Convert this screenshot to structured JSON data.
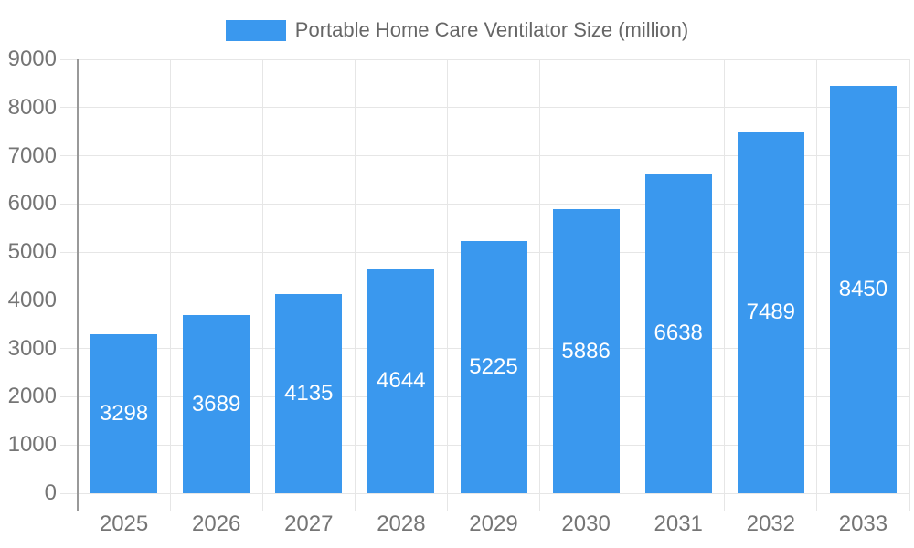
{
  "chart_data": {
    "type": "bar",
    "title": "Portable Home Care Ventilator Size (million)",
    "legend": [
      {
        "label": "Portable Home Care Ventilator Size (million)",
        "color": "#3a98ee"
      }
    ],
    "categories": [
      "2025",
      "2026",
      "2027",
      "2028",
      "2029",
      "2030",
      "2031",
      "2032",
      "2033"
    ],
    "series": [
      {
        "name": "Portable Home Care Ventilator Size (million)",
        "values": [
          3298,
          3689,
          4135,
          4644,
          5225,
          5886,
          6638,
          7489,
          8450
        ]
      }
    ],
    "data_labels_visible": true,
    "xlabel": "",
    "ylabel": "",
    "ylim": [
      0,
      9000
    ],
    "y_ticks": [
      0,
      1000,
      2000,
      3000,
      4000,
      5000,
      6000,
      7000,
      8000,
      9000
    ],
    "legend_position": "top",
    "grid": true,
    "colors": {
      "bar": "#3a98ee",
      "value_label": "#ffffff",
      "axis_text": "#757575",
      "legend_text": "#666666",
      "gridline": "#e6e6e6",
      "axis_line": "#999999"
    }
  }
}
